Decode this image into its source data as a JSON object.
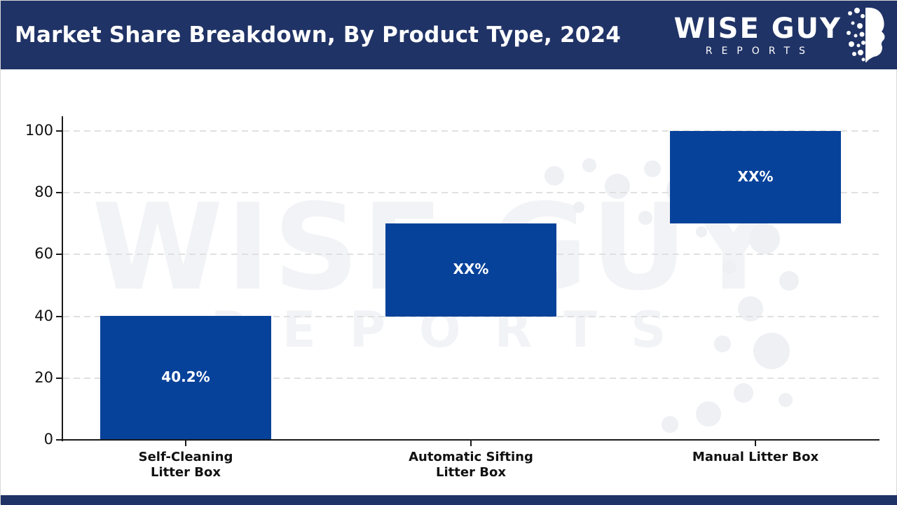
{
  "header": {
    "title": "Market Share Breakdown, By Product Type, 2024",
    "logo": {
      "primary": "WISE GUY",
      "secondary": "REPORTS"
    }
  },
  "watermark": {
    "primary": "WISE GUY",
    "secondary": "REPORTS"
  },
  "colors": {
    "header_bg": "#203366",
    "bar": "#07429a",
    "grid": "#e0e0e0",
    "axis": "#1a1a1a",
    "bar_label": "#ffffff",
    "watermark": "#f2f3f6"
  },
  "chart_data": {
    "type": "bar",
    "subtype": "floating-range-bars",
    "title": "Market Share Breakdown, By Product Type, 2024",
    "categories": [
      [
        "Self-Cleaning",
        "Litter Box"
      ],
      [
        "Automatic Sifting",
        "Litter Box"
      ],
      [
        "Manual Litter Box"
      ]
    ],
    "bars": [
      {
        "category": "Self-Cleaning Litter Box",
        "range": [
          0,
          40.2
        ],
        "label": "40.2%"
      },
      {
        "category": "Automatic Sifting Litter Box",
        "range": [
          40,
          70
        ],
        "label": "XX%"
      },
      {
        "category": "Manual Litter Box",
        "range": [
          70,
          100
        ],
        "label": "XX%"
      }
    ],
    "yticks": [
      0,
      20,
      40,
      60,
      80,
      100
    ],
    "ylim": [
      0,
      104.8
    ],
    "xlabel": "",
    "ylabel": "",
    "grid": "dashed-horizontal",
    "legend": "none"
  }
}
